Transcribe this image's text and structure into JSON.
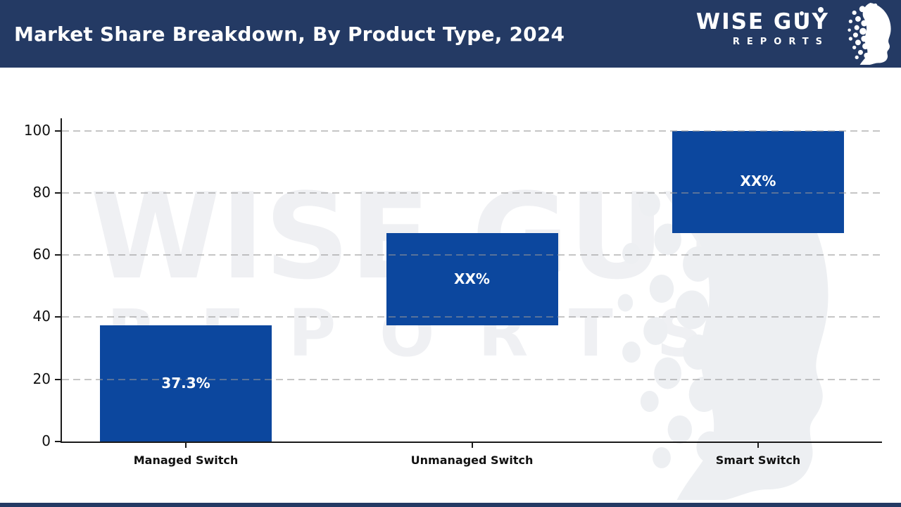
{
  "header": {
    "title": "Market Share Breakdown, By Product Type, 2024",
    "bg_color": "#243a64",
    "logo": {
      "line1": "WISE GUY",
      "line2": "REPORTS"
    }
  },
  "watermark": {
    "line1": "WISE GUY",
    "line2": "REPORTS"
  },
  "chart_data": {
    "type": "bar",
    "subtype": "floating-waterfall",
    "title": "Market Share Breakdown, By Product Type, 2024",
    "categories": [
      "Managed Switch",
      "Unmanaged Switch",
      "Smart Switch"
    ],
    "segments": [
      {
        "category": "Managed Switch",
        "start": 0,
        "end": 37.3,
        "label": "37.3%"
      },
      {
        "category": "Unmanaged Switch",
        "start": 37.3,
        "end": 67,
        "label": "XX%"
      },
      {
        "category": "Smart Switch",
        "start": 67,
        "end": 100,
        "label": "XX%"
      }
    ],
    "xlabel": "",
    "ylabel": "",
    "yticks": [
      0,
      20,
      40,
      60,
      80,
      100
    ],
    "ylim": [
      0,
      104
    ],
    "grid": "horizontal-dashed",
    "legend": "none",
    "bar_color": "#0c479e",
    "bar_label_color": "#ffffff",
    "axis_color": "#1a1a1a"
  },
  "footer": {
    "bg_color": "#243a64"
  }
}
